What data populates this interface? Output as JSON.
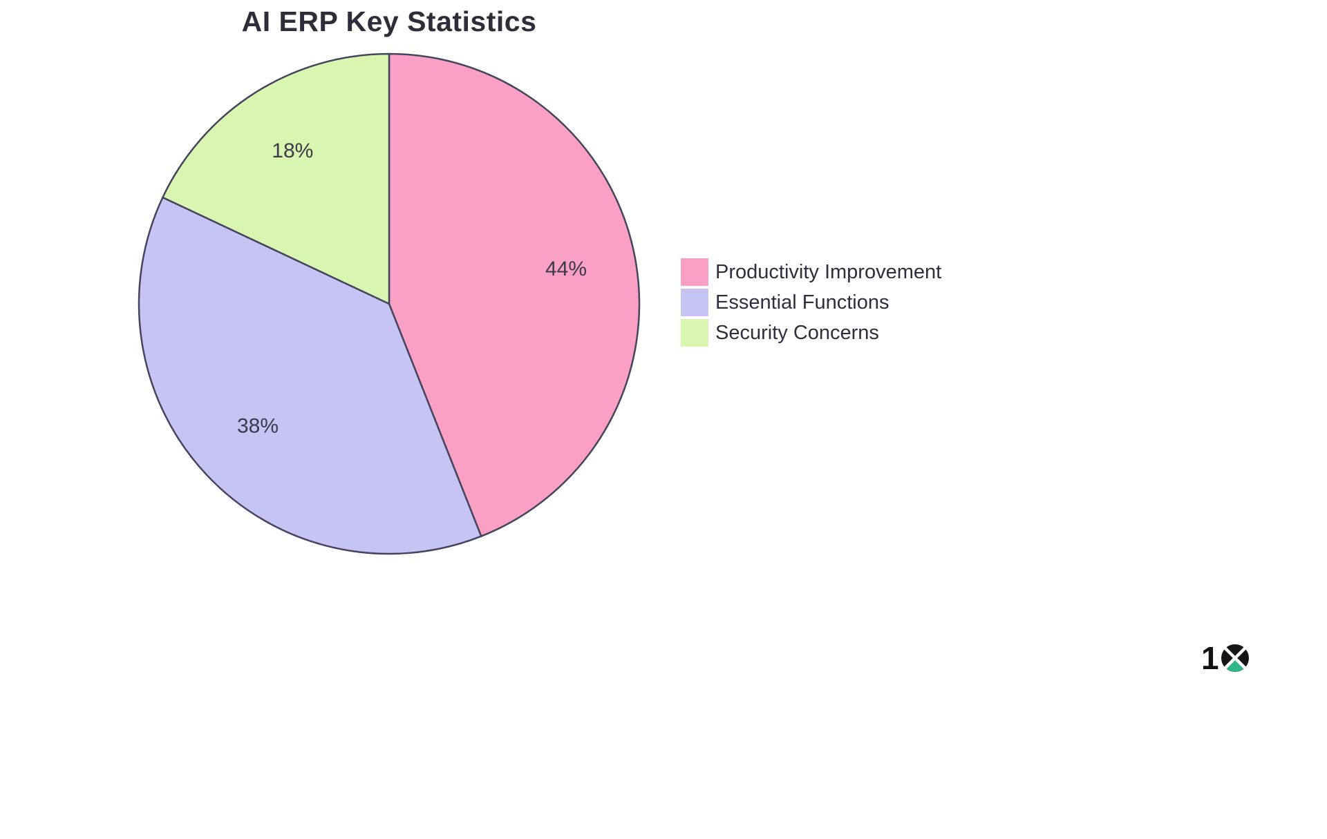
{
  "chart_data": {
    "type": "pie",
    "title": "AI ERP Key Statistics",
    "slices": [
      {
        "label": "Productivity Improvement",
        "value": 44,
        "pct_label": "44%",
        "color": "#FAA0C5"
      },
      {
        "label": "Essential Functions",
        "value": 38,
        "pct_label": "38%",
        "color": "#C6C4F2"
      },
      {
        "label": "Security Concerns",
        "value": 18,
        "pct_label": "18%",
        "color": "#D9F6B1"
      }
    ],
    "start_angle_deg": -90,
    "direction": "clockwise",
    "stroke_color": "#44445e",
    "stroke_width": 2.5,
    "label_color": "#3a3a4c",
    "legend_position": "right",
    "legend_labels": [
      "Productivity Improvement",
      "Essential Functions",
      "Security Concerns"
    ]
  },
  "branding": {
    "logo_text": "1",
    "logo_icon": "circle-x-mark-icon",
    "logo_accent_color": "#2eb885",
    "logo_base_color": "#161616"
  }
}
